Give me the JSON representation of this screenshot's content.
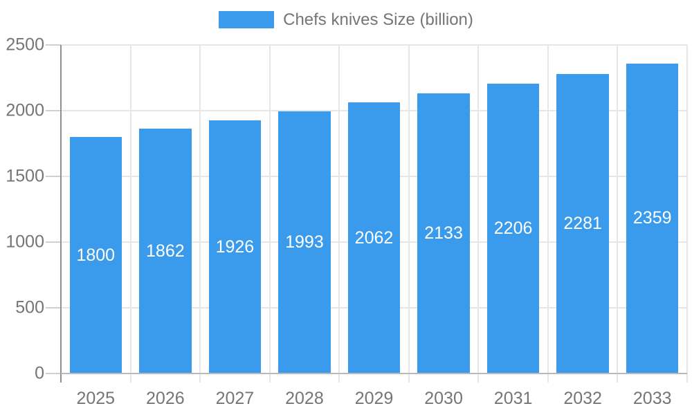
{
  "legend": {
    "label": "Chefs knives Size (billion)"
  },
  "chart_data": {
    "type": "bar",
    "title": "",
    "categories": [
      "2025",
      "2026",
      "2027",
      "2028",
      "2029",
      "2030",
      "2031",
      "2032",
      "2033"
    ],
    "series": [
      {
        "name": "Chefs knives Size (billion)",
        "values": [
          1800,
          1862,
          1926,
          1993,
          2062,
          2133,
          2206,
          2281,
          2359
        ]
      }
    ],
    "xlabel": "",
    "ylabel": "",
    "ylim": [
      0,
      2500
    ],
    "yticks": [
      0,
      500,
      1000,
      1500,
      2000,
      2500
    ],
    "grid": true,
    "legend_position": "top-center",
    "bar_labels": "inside-center"
  },
  "colors": {
    "bar": "#3a9aec",
    "bar_label": "#ffffff",
    "axis_text": "#757575",
    "gridline": "#e6e6e6",
    "axis_line": "#8f8f8f",
    "baseline": "#b9b9b9",
    "tick": "#cfcfcf",
    "background": "#ffffff"
  }
}
